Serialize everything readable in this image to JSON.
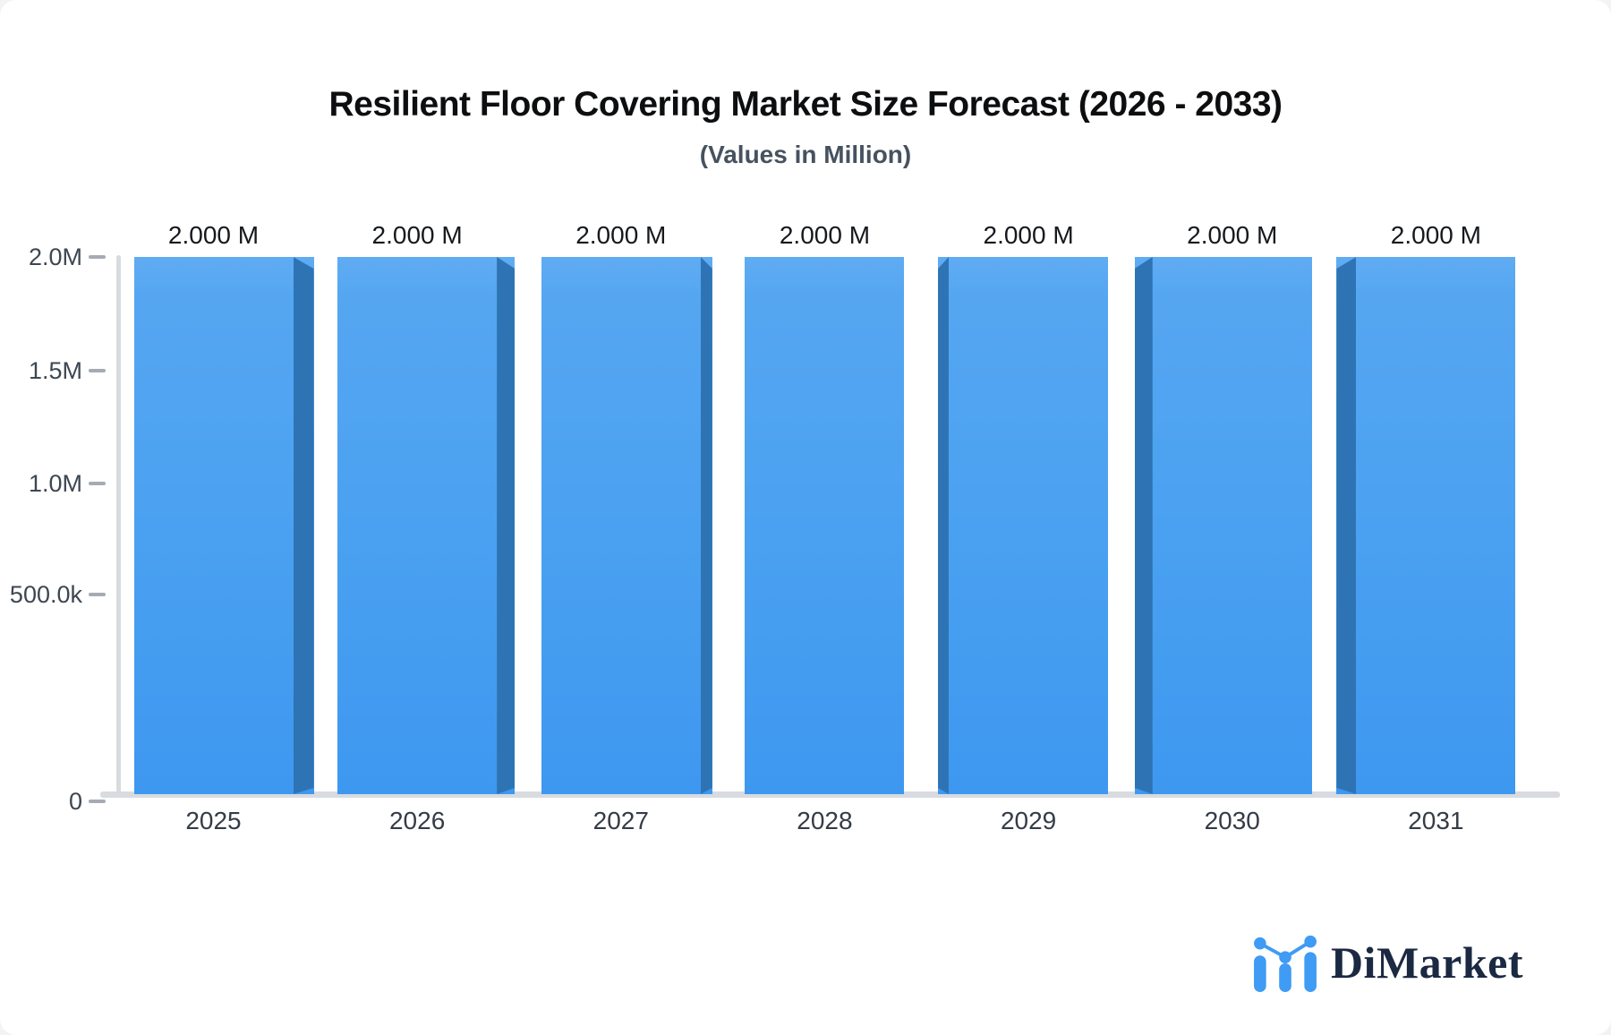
{
  "header": {
    "title": "Resilient Floor Covering Market Size Forecast (2026 - 2033)",
    "subtitle": "(Values in Million)"
  },
  "chart_data": {
    "type": "bar",
    "title": "Resilient Floor Covering Market Size Forecast (2026 - 2033)",
    "subtitle": "(Values in Million)",
    "unit": "Million",
    "categories": [
      "2025",
      "2026",
      "2027",
      "2028",
      "2029",
      "2030",
      "2031"
    ],
    "values": [
      2.0,
      2.0,
      2.0,
      2.0,
      2.0,
      2.0,
      2.0
    ],
    "value_labels": [
      "2.000 M",
      "2.000 M",
      "2.000 M",
      "2.000 M",
      "2.000 M",
      "2.000 M",
      "2.000 M"
    ],
    "yticks": [
      "2.0M",
      "1.5M",
      "1.0M",
      "500.0k",
      "0"
    ],
    "ylim": [
      0,
      2000000
    ],
    "grid": false,
    "legend": false,
    "colors": {
      "bar_top": "#60acf3",
      "bar_bottom": "#3e98f0",
      "bar_side": "#2e74b4",
      "axis": "#d8dbdf",
      "tick": "#a6abb2",
      "tick_text": "#3e4751",
      "value_text": "#16191d"
    }
  },
  "logo": {
    "name": "DiMarket",
    "icon": "bar-chart-logo-icon",
    "icon_color": "#3f9bf4",
    "text_color": "#1b2942"
  }
}
